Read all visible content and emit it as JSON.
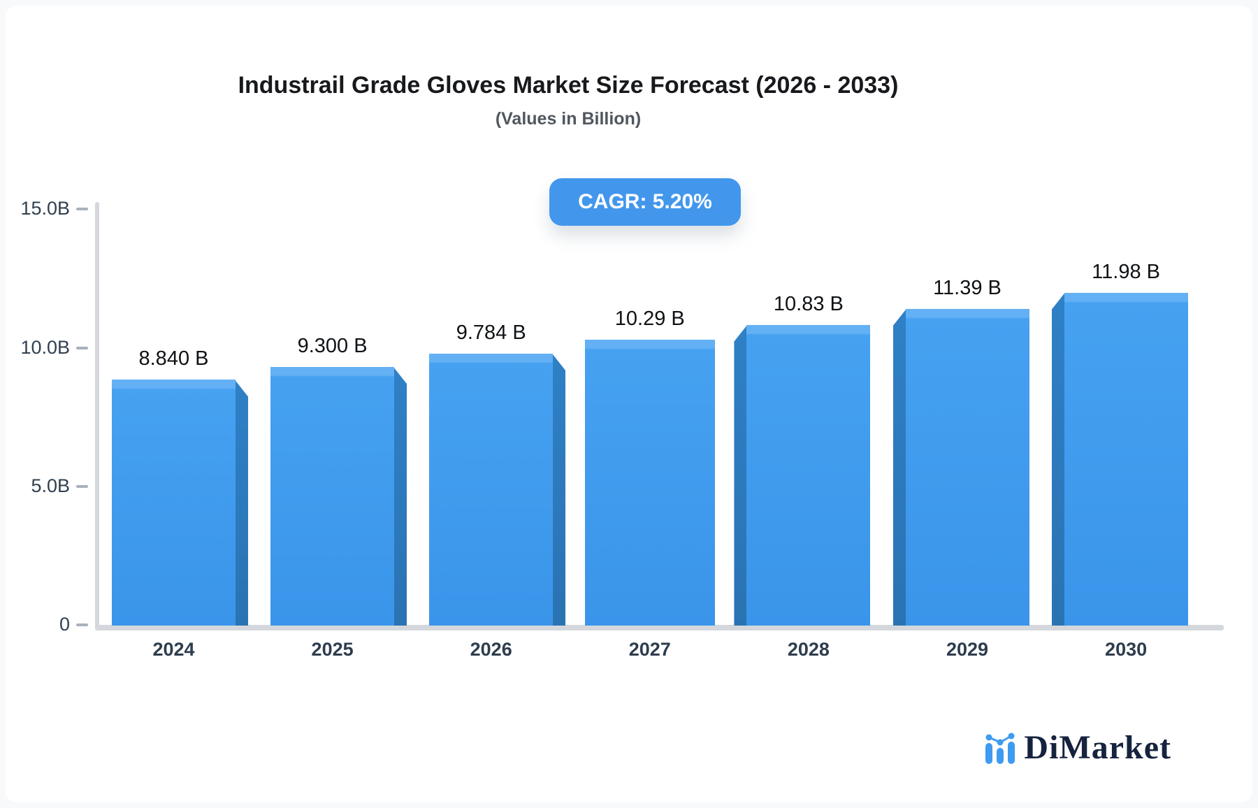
{
  "page": {
    "background": "#f7f9fa",
    "card_background": "#ffffff"
  },
  "header": {
    "title": "Industrail Grade Gloves Market Size Forecast (2026 - 2033)",
    "subtitle": "(Values in Billion)"
  },
  "badge": {
    "label": "CAGR: 5.20%",
    "background": "#4297ec",
    "text_color": "#ffffff"
  },
  "chart_data": {
    "type": "bar",
    "title": "Industrail Grade Gloves Market Size Forecast (2026 - 2033)",
    "subtitle": "(Values in Billion)",
    "cagr_label": "CAGR: 5.20%",
    "categories": [
      "2024",
      "2025",
      "2026",
      "2027",
      "2028",
      "2029",
      "2030"
    ],
    "values": [
      8.84,
      9.3,
      9.784,
      10.29,
      10.83,
      11.39,
      11.98
    ],
    "value_labels": [
      "8.840 B",
      "9.300 B",
      "9.784 B",
      "10.29 B",
      "10.83 B",
      "11.39 B",
      "11.98 B"
    ],
    "xlabel": "",
    "ylabel": "",
    "ylim": [
      0,
      15
    ],
    "yticks": [
      {
        "value": 0,
        "label": "0"
      },
      {
        "value": 5,
        "label": "5.0B"
      },
      {
        "value": 10,
        "label": "10.0B"
      },
      {
        "value": 15,
        "label": "15.0B"
      }
    ],
    "grid": false,
    "legend": false,
    "bar_style": "3d-perspective-center",
    "colors": {
      "front_top_strip": "#63b1f4",
      "front_body_top": "#46a1f1",
      "front_body_bottom": "#3a95ea",
      "side_top": "#2f80c6",
      "side_bottom": "#2a73b3",
      "axis_color": "#d4d8dc",
      "dash_color": "#a9b1bb",
      "ytick_color": "#31404f",
      "xtick_color": "#2e3d4d",
      "value_color": "#0f1215",
      "title_color": "#17191c",
      "subtitle_color": "#50575e"
    }
  },
  "logo": {
    "brand": "DiMarket",
    "icon": "dimarket-bars-icon",
    "icon_color": "#3e9bf0",
    "text_color": "#16233e"
  }
}
